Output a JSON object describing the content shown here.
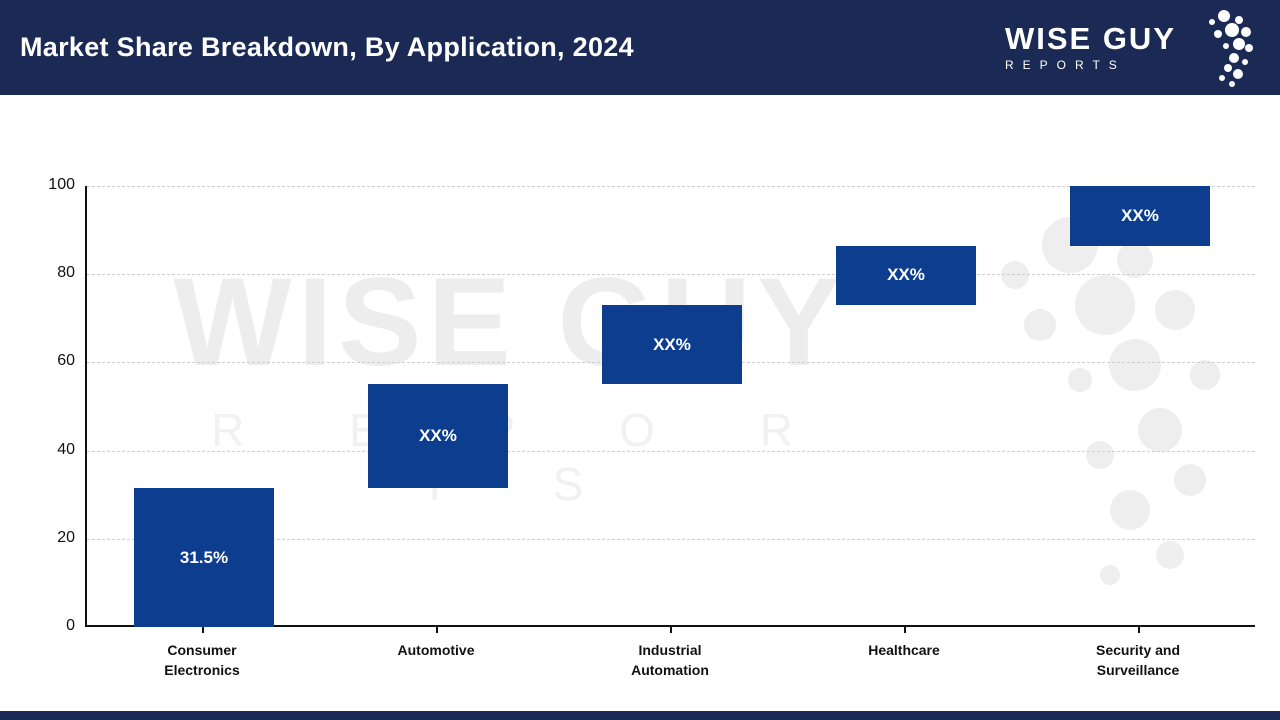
{
  "header": {
    "title": "Market Share Breakdown, By Application, 2024",
    "bg_color": "#1b2a55",
    "logo": {
      "line1": "WISE GUY",
      "line2": "REPORTS"
    }
  },
  "watermark": {
    "line1": "WISE GUY",
    "line2": "REPORTS"
  },
  "chart_data": {
    "type": "bar",
    "subtype": "waterfall",
    "title": "Market Share Breakdown, By Application, 2024",
    "categories": [
      "Consumer Electronics",
      "Automotive",
      "Industrial Automation",
      "Healthcare",
      "Security and Surveillance"
    ],
    "series": [
      {
        "name": "Market Share (%)",
        "starts": [
          0,
          31.5,
          55,
          73,
          86.5
        ],
        "ends": [
          31.5,
          55,
          73,
          86.5,
          100
        ],
        "segment_values": [
          31.5,
          23.5,
          18,
          13.5,
          13.5
        ]
      }
    ],
    "bar_labels": [
      "31.5%",
      "XX%",
      "XX%",
      "XX%",
      "XX%"
    ],
    "bar_color": "#0d3d8f",
    "xlabel": "",
    "ylabel": "",
    "ylim": [
      0,
      100
    ],
    "yticks": [
      0,
      20,
      40,
      60,
      80,
      100
    ],
    "grid": "horizontal-dashed",
    "legend": "none"
  }
}
